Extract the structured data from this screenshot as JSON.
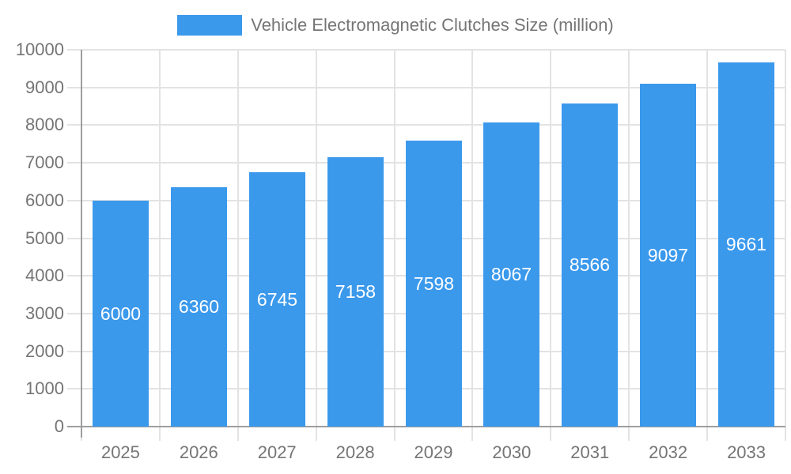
{
  "legend": {
    "label": "Vehicle Electromagnetic Clutches Size (million)"
  },
  "chart_data": {
    "type": "bar",
    "title": "Vehicle Electromagnetic Clutches Size (million)",
    "categories": [
      "2025",
      "2026",
      "2027",
      "2028",
      "2029",
      "2030",
      "2031",
      "2032",
      "2033"
    ],
    "values": [
      6000,
      6360,
      6745,
      7158,
      7598,
      8067,
      8566,
      9097,
      9661
    ],
    "series": [
      {
        "name": "Vehicle Electromagnetic Clutches Size (million)",
        "values": [
          6000,
          6360,
          6745,
          7158,
          7598,
          8067,
          8566,
          9097,
          9661
        ]
      }
    ],
    "xlabel": "",
    "ylabel": "",
    "ylim": [
      0,
      10000
    ],
    "ytick_step": 1000,
    "ytick_labels": [
      "0",
      "1000",
      "2000",
      "3000",
      "4000",
      "5000",
      "6000",
      "7000",
      "8000",
      "9000",
      "10000"
    ],
    "grid": "on",
    "legend_position": "top-center",
    "value_labels": "inside-center",
    "colors": {
      "bar": "#3b99ec",
      "grid": "#e3e3e3",
      "axis": "#9e9e9e",
      "tick_text": "#757575",
      "value_text": "#ffffff",
      "background": "#ffffff"
    }
  }
}
